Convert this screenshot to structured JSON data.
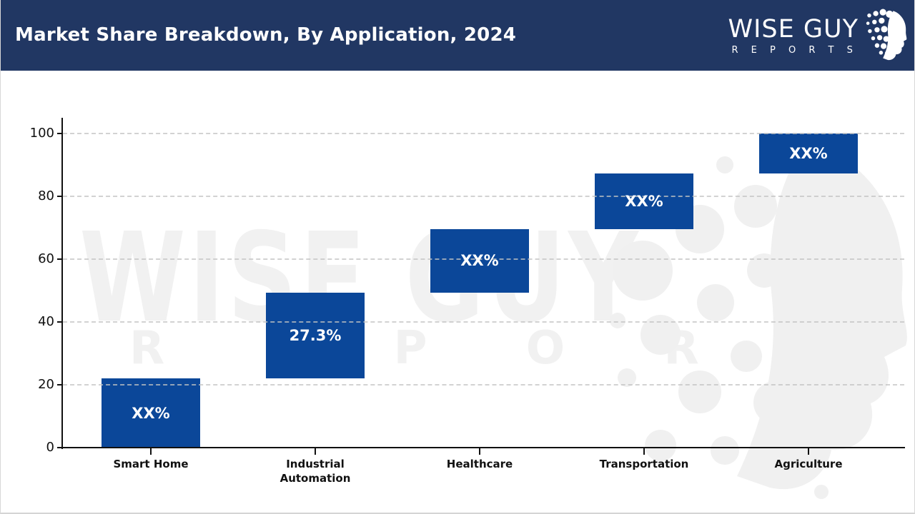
{
  "header": {
    "title": "Market Share Breakdown, By Application, 2024",
    "logo": {
      "brand_line1": "WISE GUY",
      "brand_line2": "R E P O R T S"
    }
  },
  "watermark": {
    "line1": "WISE GUY",
    "line2": "R E P O R T S"
  },
  "chart_data": {
    "type": "bar",
    "variant": "waterfall",
    "title": "Market Share Breakdown, By Application, 2024",
    "categories": [
      "Smart Home",
      "Industrial Automation",
      "Healthcare",
      "Transportation",
      "Agriculture"
    ],
    "segments": [
      {
        "category": "Smart Home",
        "start": 0,
        "end": 22,
        "bar_label": "XX%"
      },
      {
        "category": "Industrial Automation",
        "start": 22,
        "end": 49.3,
        "bar_label": "27.3%"
      },
      {
        "category": "Healthcare",
        "start": 49.3,
        "end": 69.6,
        "bar_label": "XX%"
      },
      {
        "category": "Transportation",
        "start": 69.6,
        "end": 87.3,
        "bar_label": "XX%"
      },
      {
        "category": "Agriculture",
        "start": 87.3,
        "end": 100,
        "bar_label": "XX%"
      }
    ],
    "xlabel": "",
    "ylabel": "",
    "yticks": [
      0,
      20,
      40,
      60,
      80,
      100
    ],
    "ylim": [
      0,
      105
    ],
    "grid": {
      "axis": "y",
      "style": "dashed",
      "drawn_above_bars": true
    },
    "legend": "none",
    "bar_color": "#0b4799"
  },
  "colors": {
    "header_bg": "#213763",
    "bar": "#0b4799",
    "bar_label_text": "#ffffff",
    "axis": "#111111",
    "gridline": "#d9d9d9",
    "watermark": "#f1f1f1",
    "page_border": "#d8d8d8"
  }
}
